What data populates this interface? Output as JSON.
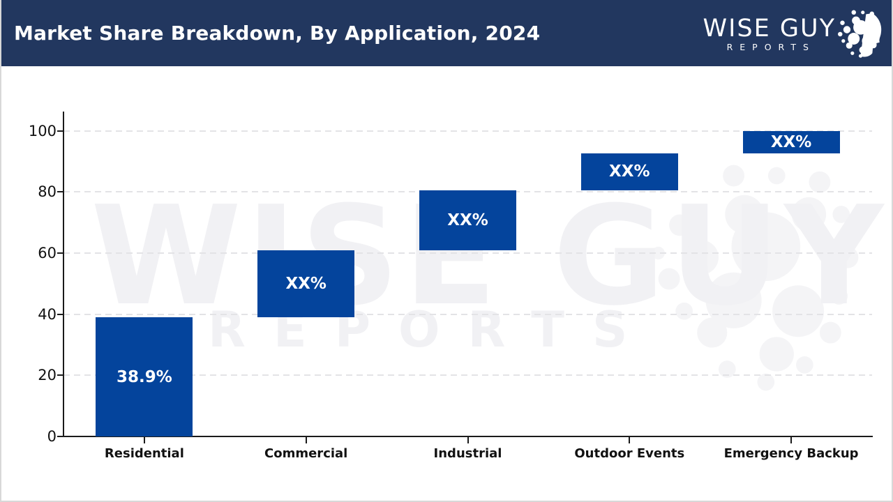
{
  "header": {
    "title": "Market Share Breakdown, By Application, 2024",
    "logo": {
      "line1": "WISE GUY",
      "line2": "REPORTS"
    }
  },
  "watermark": {
    "line1": "WISE GUY",
    "line2": "REPORTS"
  },
  "chart_data": {
    "type": "bar",
    "subtype": "waterfall",
    "title": "Market Share Breakdown, By Application, 2024",
    "categories": [
      "Residential",
      "Commercial",
      "Industrial",
      "Outdoor Events",
      "Emergency Backup"
    ],
    "segments": [
      {
        "category": "Residential",
        "start": 0,
        "end": 38.9,
        "label": "38.9%"
      },
      {
        "category": "Commercial",
        "start": 38.9,
        "end": 61.0,
        "label": "XX%"
      },
      {
        "category": "Industrial",
        "start": 61.0,
        "end": 80.6,
        "label": "XX%"
      },
      {
        "category": "Outdoor Events",
        "start": 80.6,
        "end": 92.5,
        "label": "XX%"
      },
      {
        "category": "Emergency Backup",
        "start": 92.5,
        "end": 100,
        "label": "XX%"
      }
    ],
    "y_ticks": [
      0,
      20,
      40,
      60,
      80,
      100
    ],
    "ylim": [
      0,
      105
    ],
    "xlabel": "",
    "ylabel": "",
    "legend": "none",
    "grid": "horizontal-dashed"
  },
  "colors": {
    "header_bg": "#22375f",
    "bar": "#04449c",
    "bar_label": "#ffffff",
    "axis": "#1a1a1a",
    "grid": "#e3e3e6",
    "watermark": "#f1f1f4",
    "frame_border": "#d8d8d8"
  }
}
